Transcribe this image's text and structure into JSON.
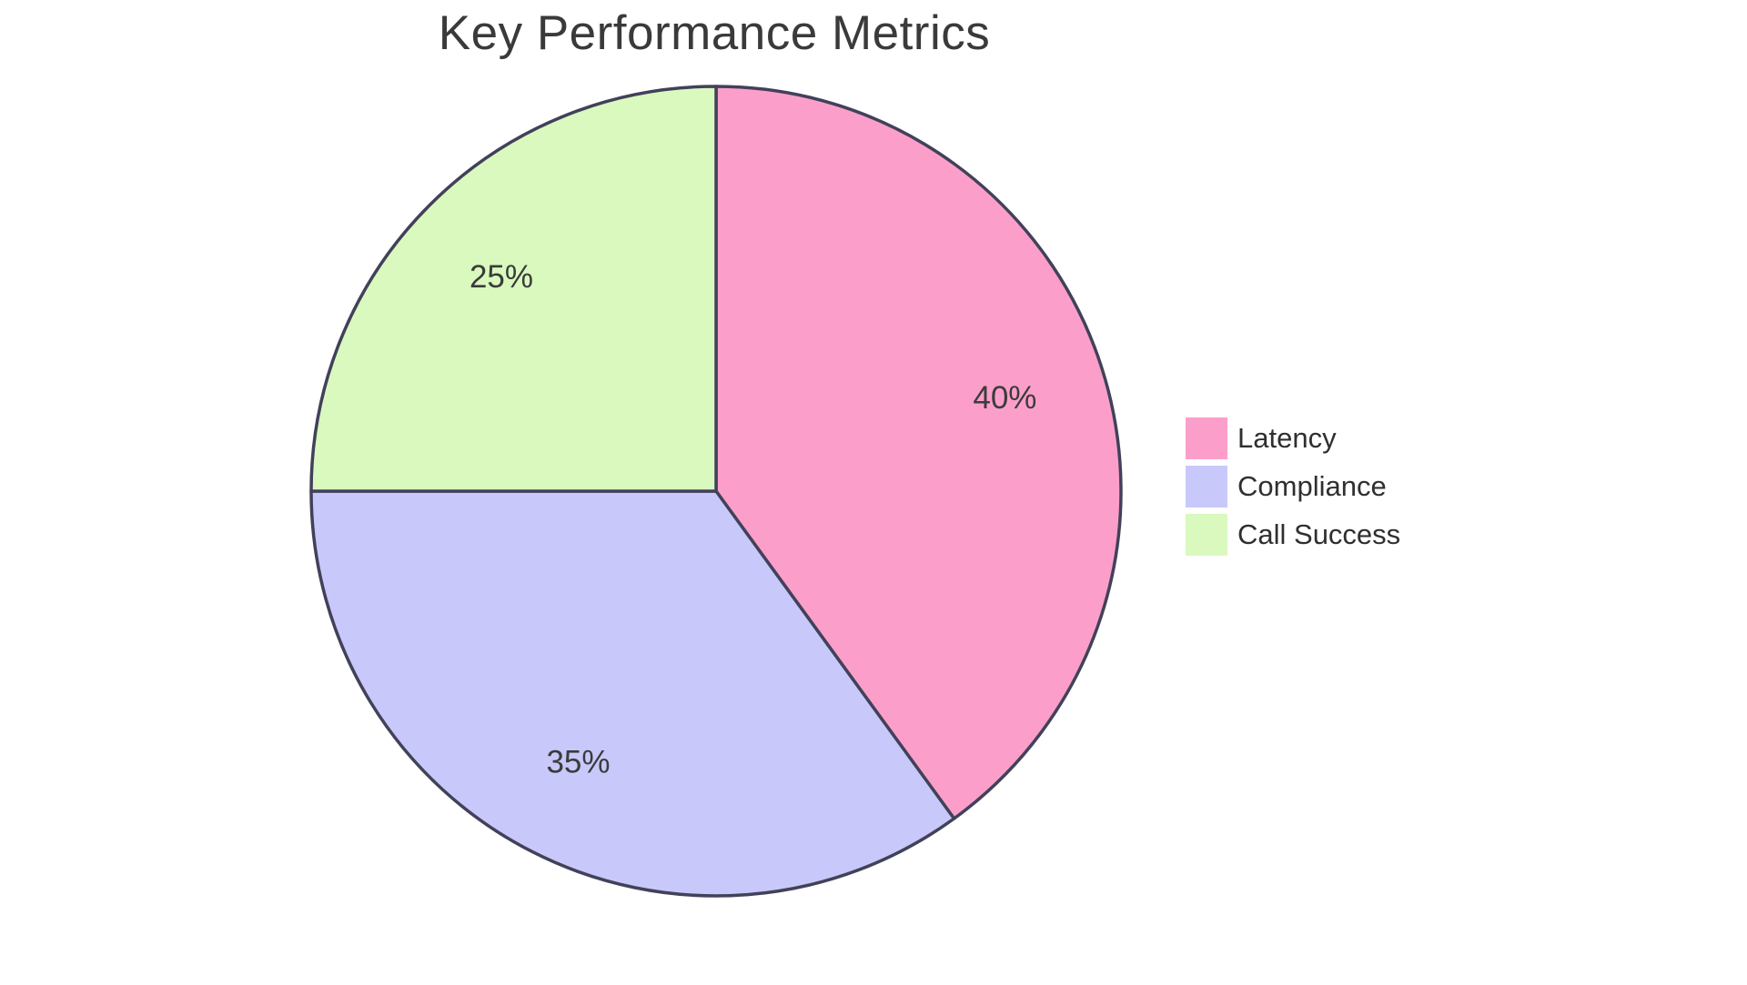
{
  "page": {
    "background_color": "#FFFFFF"
  },
  "chart_data": {
    "type": "pie",
    "title": "Key Performance Metrics",
    "categories": [
      "Latency",
      "Compliance",
      "Call Success"
    ],
    "values": [
      40,
      35,
      25
    ],
    "unit": "percent",
    "slices": [
      {
        "label": "Latency",
        "value": 40,
        "percent_label": "40%",
        "color": "#FB9FCA"
      },
      {
        "label": "Compliance",
        "value": 35,
        "percent_label": "35%",
        "color": "#C8C9FA"
      },
      {
        "label": "Call Success",
        "value": 25,
        "percent_label": "25%",
        "color": "#D9F9BE"
      }
    ],
    "start_angle_deg": 0,
    "direction": "clockwise",
    "legend_position": "right",
    "style": {
      "slice_stroke_color": "#42415A",
      "slice_stroke_width": 3.5,
      "percent_label_color": "#3B3B3B",
      "title_color": "#3A3A3A",
      "legend_text_color": "#2F2F2F"
    }
  }
}
